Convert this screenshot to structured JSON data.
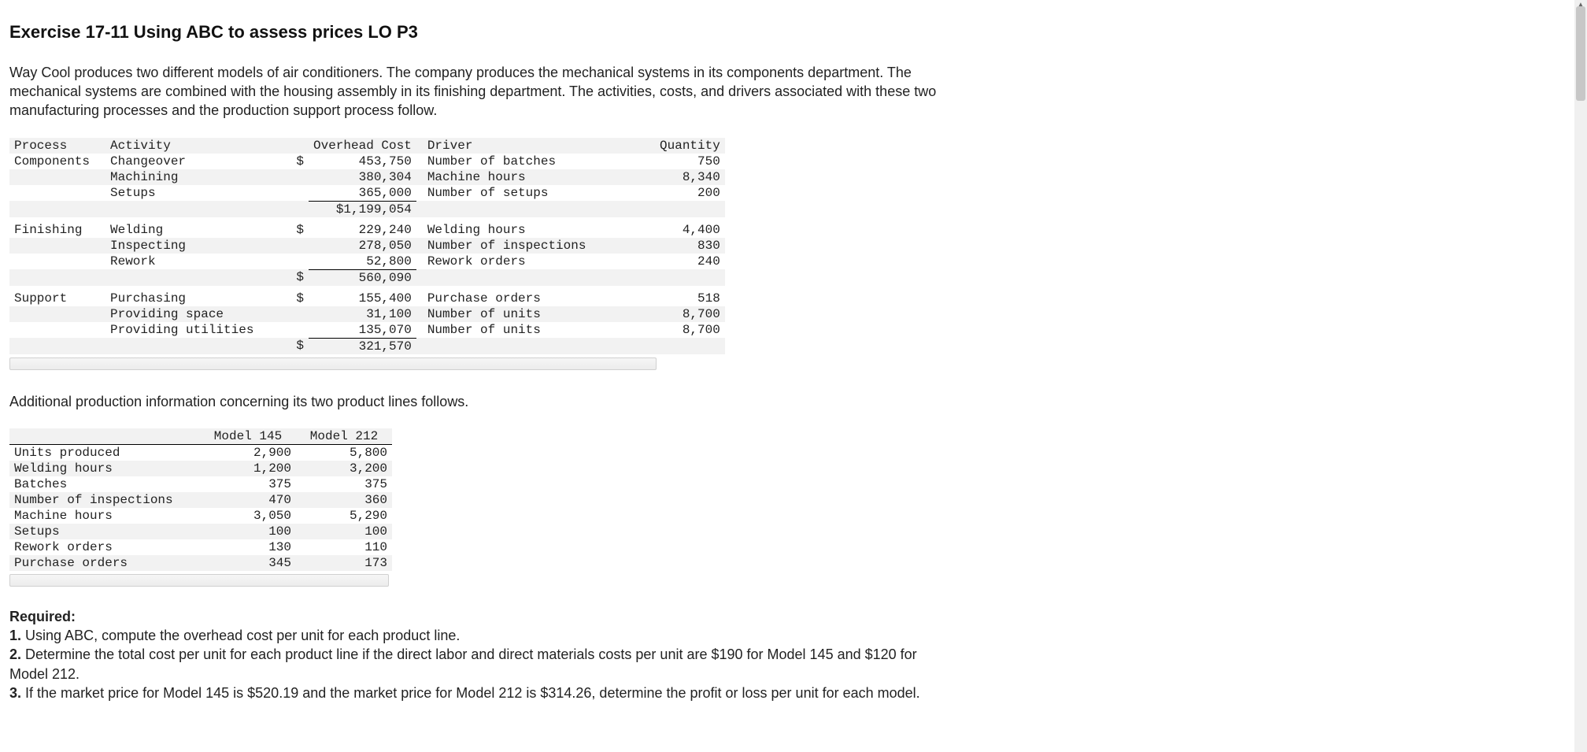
{
  "title": "Exercise 17-11 Using ABC to assess prices LO P3",
  "intro": "Way Cool produces two different models of air conditioners. The company produces the mechanical systems in its components department. The mechanical systems are combined with the housing assembly in its finishing department. The activities, costs, and drivers associated with these two manufacturing processes and the production support process follow.",
  "table1": {
    "headers": {
      "process": "Process",
      "activity": "Activity",
      "overhead": "Overhead Cost",
      "driver": "Driver",
      "quantity": "Quantity"
    },
    "groups": [
      {
        "process": "Components",
        "rows": [
          {
            "activity": "Changeover",
            "cur": "$",
            "cost": "453,750",
            "driver": "Number of batches",
            "qty": "750"
          },
          {
            "activity": "Machining",
            "cur": "",
            "cost": "380,304",
            "driver": "Machine hours",
            "qty": "8,340"
          },
          {
            "activity": "Setups",
            "cur": "",
            "cost": "365,000",
            "driver": "Number of setups",
            "qty": "200"
          }
        ],
        "subtotal": {
          "cur": "",
          "cost": "$1,199,054"
        }
      },
      {
        "process": "Finishing",
        "rows": [
          {
            "activity": "Welding",
            "cur": "$",
            "cost": "229,240",
            "driver": "Welding hours",
            "qty": "4,400"
          },
          {
            "activity": "Inspecting",
            "cur": "",
            "cost": "278,050",
            "driver": "Number of inspections",
            "qty": "830"
          },
          {
            "activity": "Rework",
            "cur": "",
            "cost": "52,800",
            "driver": "Rework orders",
            "qty": "240"
          }
        ],
        "subtotal": {
          "cur": "$",
          "cost": "560,090"
        }
      },
      {
        "process": "Support",
        "rows": [
          {
            "activity": "Purchasing",
            "cur": "$",
            "cost": "155,400",
            "driver": "Purchase orders",
            "qty": "518"
          },
          {
            "activity": "Providing space",
            "cur": "",
            "cost": "31,100",
            "driver": "Number of units",
            "qty": "8,700"
          },
          {
            "activity": "Providing utilities",
            "cur": "",
            "cost": "135,070",
            "driver": "Number of units",
            "qty": "8,700"
          }
        ],
        "subtotal": {
          "cur": "$",
          "cost": "321,570"
        }
      }
    ]
  },
  "models_intro": "Additional production information concerning its two product lines follows.",
  "table2": {
    "cols": [
      "Model 145",
      "Model 212"
    ],
    "rows": [
      {
        "label": "Units produced",
        "v": [
          "2,900",
          "5,800"
        ]
      },
      {
        "label": "Welding hours",
        "v": [
          "1,200",
          "3,200"
        ]
      },
      {
        "label": "Batches",
        "v": [
          "375",
          "375"
        ]
      },
      {
        "label": "Number of inspections",
        "v": [
          "470",
          "360"
        ]
      },
      {
        "label": "Machine hours",
        "v": [
          "3,050",
          "5,290"
        ]
      },
      {
        "label": "Setups",
        "v": [
          "100",
          "100"
        ]
      },
      {
        "label": "Rework orders",
        "v": [
          "130",
          "110"
        ]
      },
      {
        "label": "Purchase orders",
        "v": [
          "345",
          "173"
        ]
      }
    ]
  },
  "required": {
    "heading": "Required:",
    "r1": "1. Using ABC, compute the overhead cost per unit for each product line.",
    "r2": "2. Determine the total cost per unit for each product line if the direct labor and direct materials costs per unit are $190 for Model 145 and $120 for Model 212.",
    "r3": "3. If the market price for Model 145 is $520.19 and the market price for Model 212 is $314.26, determine the profit or loss per unit for each model."
  },
  "hscroll_width_t1": "820px",
  "hscroll_width_t2": "480px"
}
